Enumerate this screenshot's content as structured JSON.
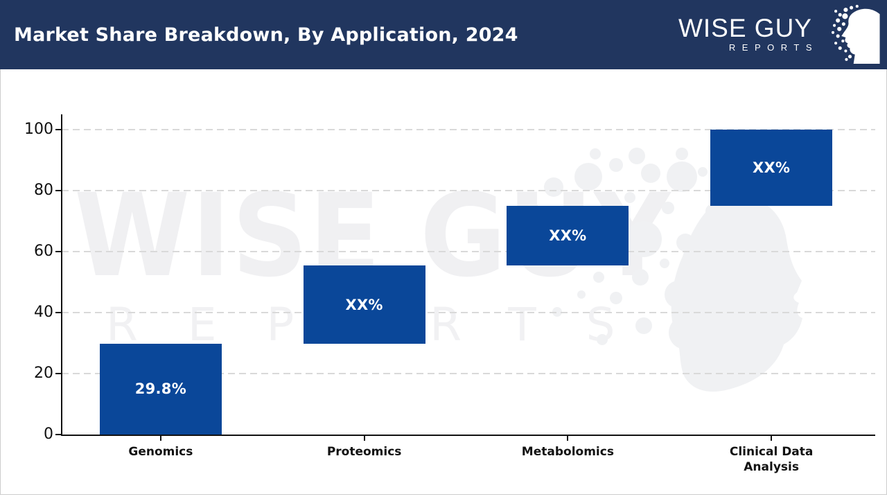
{
  "header": {
    "title": "Market Share Breakdown, By Application, 2024",
    "logo": {
      "line1": "WISE GUY",
      "line2": "REPORTS"
    }
  },
  "watermark": {
    "line1": "WISE GUY",
    "line2": "REPORTS"
  },
  "chart_data": {
    "type": "bar",
    "subtype": "waterfall",
    "title": "Market Share Breakdown, By Application, 2024",
    "categories": [
      "Genomics",
      "Proteomics",
      "Metabolomics",
      "Clinical Data Analysis"
    ],
    "segments": [
      {
        "category": "Genomics",
        "start": 0,
        "end": 29.8,
        "value": 29.8,
        "label": "29.8%"
      },
      {
        "category": "Proteomics",
        "start": 29.8,
        "end": 55.4,
        "value": 25.6,
        "label": "XX%"
      },
      {
        "category": "Metabolomics",
        "start": 55.4,
        "end": 75.0,
        "value": 19.6,
        "label": "XX%"
      },
      {
        "category": "Clinical Data Analysis",
        "start": 75.0,
        "end": 100.0,
        "value": 25.0,
        "label": "XX%"
      }
    ],
    "xlabel": "",
    "ylabel": "",
    "ylim": [
      0,
      100
    ],
    "yticks": [
      0,
      20,
      40,
      60,
      80,
      100
    ],
    "grid": "horizontal-dashed",
    "legend": "none",
    "bar_color": "#0a4799"
  },
  "colors": {
    "header_bg": "#21365f",
    "bar": "#0a4799",
    "grid": "#d9d9d9",
    "axis": "#111111",
    "watermark": "#f0f0f2"
  }
}
